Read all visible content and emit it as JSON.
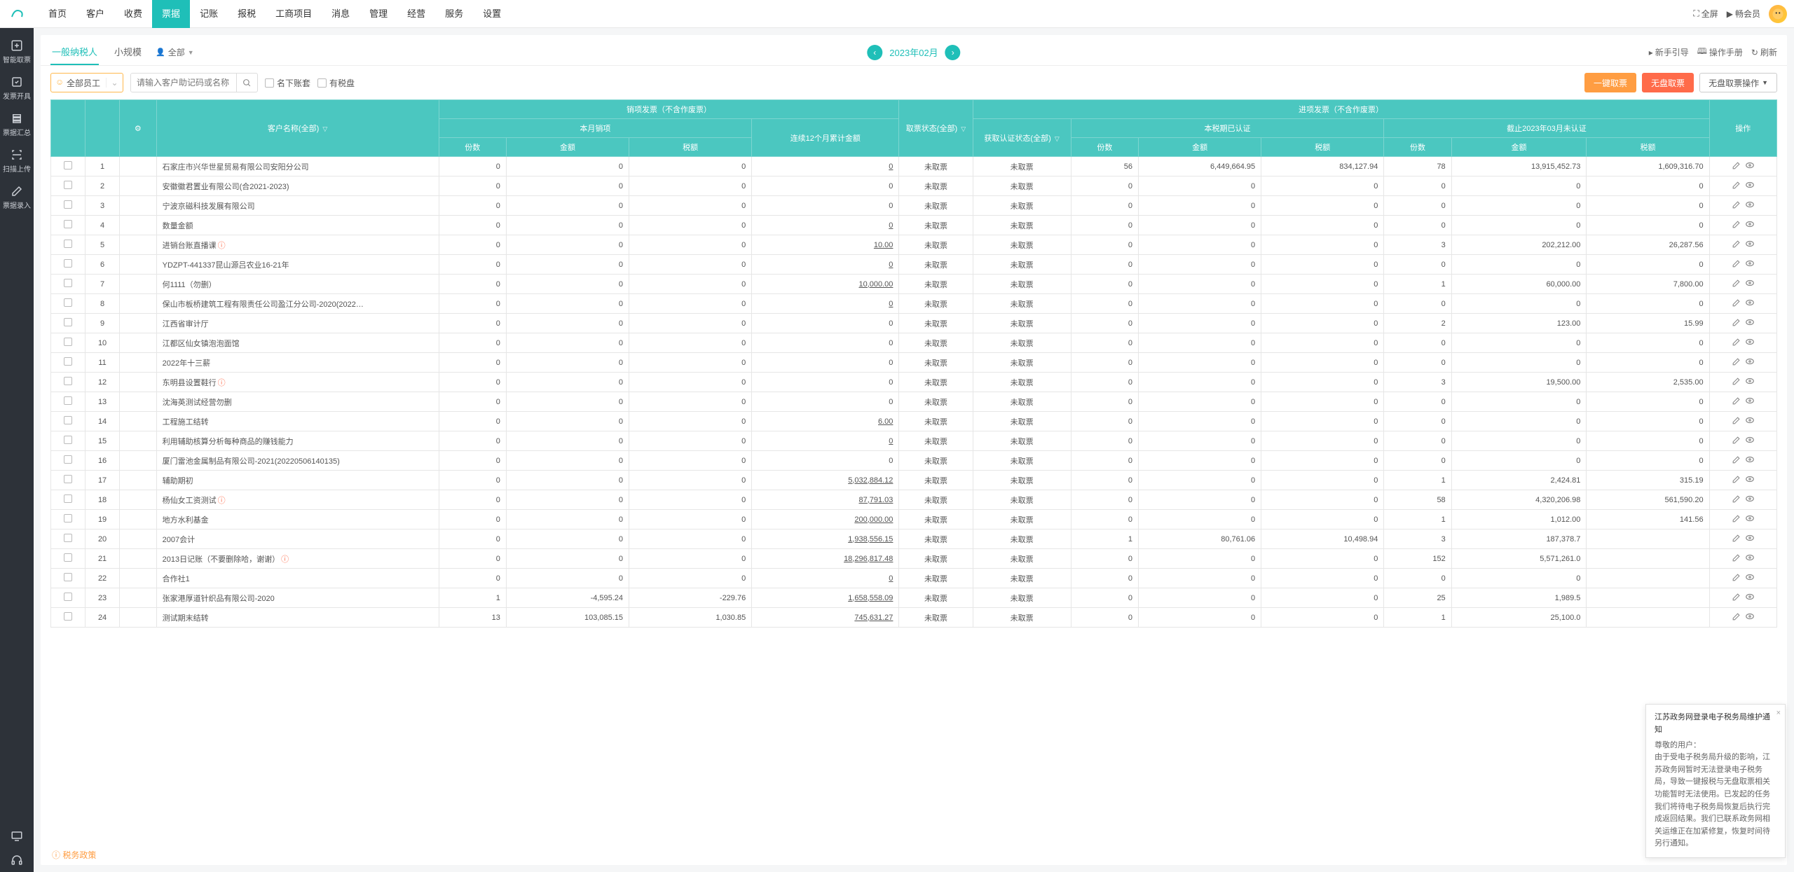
{
  "colors": {
    "accent": "#1fbfb8",
    "table_header": "#4bc7c0",
    "orange": "#ff9d42",
    "orange_red": "#ff6b4a",
    "sidebar_bg": "#2d3239",
    "page_bg": "#f5f6f7"
  },
  "topnav": {
    "menu": [
      "首页",
      "客户",
      "收费",
      "票据",
      "记账",
      "报税",
      "工商项目",
      "消息",
      "管理",
      "经营",
      "服务",
      "设置"
    ],
    "active_index": 3,
    "right": {
      "fullscreen": "全屏",
      "member": "畅会员"
    }
  },
  "sidebar": {
    "items": [
      {
        "label": "智能取票",
        "icon": "plus-box"
      },
      {
        "label": "发票开具",
        "icon": "edit-box"
      },
      {
        "label": "票据汇总",
        "icon": "stack"
      },
      {
        "label": "扫描上传",
        "icon": "scan"
      },
      {
        "label": "票据录入",
        "icon": "edit"
      }
    ],
    "bottom_items": [
      {
        "label": "",
        "icon": "monitor"
      },
      {
        "label": "",
        "icon": "headset"
      }
    ]
  },
  "tabs": {
    "items": [
      "一般纳税人",
      "小规模"
    ],
    "active_index": 0,
    "all_filter": "全部",
    "date": "2023年02月",
    "right_links": {
      "guide": "新手引导",
      "manual": "操作手册",
      "refresh": "刷新"
    }
  },
  "toolbar": {
    "employee_filter": "全部员工",
    "search_placeholder": "请输入客户助记码或名称",
    "cb_under_account": "名下账套",
    "cb_has_disk": "有税盘",
    "btn_onekey": "一键取票",
    "btn_nodisk": "无盘取票",
    "btn_nodisk_ops": "无盘取票操作"
  },
  "table": {
    "header": {
      "customer": "客户名称(全部)",
      "sales_group": "销项发票（不含作废票）",
      "sales_month": "本月销项",
      "sales_count": "份数",
      "sales_amount": "金额",
      "sales_tax": "税额",
      "sales_12m": "连续12个月累计金额",
      "fetch_status": "取票状态(全部)",
      "purchase_group": "进项发票（不含作废票）",
      "pur_certified": "本税期已认证",
      "pur_uncert": "截止2023年03月未认证",
      "cert_status": "获取认证状态(全部)",
      "count": "份数",
      "amount": "金额",
      "tax": "税额",
      "ops": "操作"
    },
    "status_values": {
      "not_fetched": "未取票"
    },
    "rows": [
      {
        "idx": 1,
        "name": "石家庄市兴华世星贸易有限公司安阳分公司",
        "s_cnt": "0",
        "s_amt": "0",
        "s_tax": "0",
        "s_12m": "0",
        "s_12m_u": true,
        "fetch": "未取票",
        "cert": "未取票",
        "c_cnt": "56",
        "c_amt": "6,449,664.95",
        "c_tax": "834,127.94",
        "u_cnt": "78",
        "u_amt": "13,915,452.73",
        "u_tax": "1,609,316.70"
      },
      {
        "idx": 2,
        "name": "安徽徽君置业有限公司(合2021-2023)",
        "s_cnt": "0",
        "s_amt": "0",
        "s_tax": "0",
        "s_12m": "0",
        "fetch": "未取票",
        "cert": "未取票",
        "c_cnt": "0",
        "c_amt": "0",
        "c_tax": "0",
        "u_cnt": "0",
        "u_amt": "0",
        "u_tax": "0"
      },
      {
        "idx": 3,
        "name": "宁波京磁科技发展有限公司",
        "s_cnt": "0",
        "s_amt": "0",
        "s_tax": "0",
        "s_12m": "0",
        "fetch": "未取票",
        "cert": "未取票",
        "c_cnt": "0",
        "c_amt": "0",
        "c_tax": "0",
        "u_cnt": "0",
        "u_amt": "0",
        "u_tax": "0"
      },
      {
        "idx": 4,
        "name": "数量金额",
        "s_cnt": "0",
        "s_amt": "0",
        "s_tax": "0",
        "s_12m": "0",
        "s_12m_u": true,
        "fetch": "未取票",
        "cert": "未取票",
        "c_cnt": "0",
        "c_amt": "0",
        "c_tax": "0",
        "u_cnt": "0",
        "u_amt": "0",
        "u_tax": "0"
      },
      {
        "idx": 5,
        "name": "进销台账直播课",
        "warn": true,
        "s_cnt": "0",
        "s_amt": "0",
        "s_tax": "0",
        "s_12m": "10.00",
        "s_12m_u": true,
        "fetch": "未取票",
        "cert": "未取票",
        "c_cnt": "0",
        "c_amt": "0",
        "c_tax": "0",
        "u_cnt": "3",
        "u_amt": "202,212.00",
        "u_tax": "26,287.56"
      },
      {
        "idx": 6,
        "name": "YDZPT-441337昆山源吕农业16-21年",
        "s_cnt": "0",
        "s_amt": "0",
        "s_tax": "0",
        "s_12m": "0",
        "s_12m_u": true,
        "fetch": "未取票",
        "cert": "未取票",
        "c_cnt": "0",
        "c_amt": "0",
        "c_tax": "0",
        "u_cnt": "0",
        "u_amt": "0",
        "u_tax": "0"
      },
      {
        "idx": 7,
        "name": "何1111（勿删）",
        "s_cnt": "0",
        "s_amt": "0",
        "s_tax": "0",
        "s_12m": "10,000.00",
        "s_12m_u": true,
        "fetch": "未取票",
        "cert": "未取票",
        "c_cnt": "0",
        "c_amt": "0",
        "c_tax": "0",
        "u_cnt": "1",
        "u_amt": "60,000.00",
        "u_tax": "7,800.00"
      },
      {
        "idx": 8,
        "name": "保山市板桥建筑工程有限责任公司盈江分公司-2020(2022…",
        "s_cnt": "0",
        "s_amt": "0",
        "s_tax": "0",
        "s_12m": "0",
        "s_12m_u": true,
        "fetch": "未取票",
        "cert": "未取票",
        "c_cnt": "0",
        "c_amt": "0",
        "c_tax": "0",
        "u_cnt": "0",
        "u_amt": "0",
        "u_tax": "0"
      },
      {
        "idx": 9,
        "name": "江西省审计厅",
        "s_cnt": "0",
        "s_amt": "0",
        "s_tax": "0",
        "s_12m": "0",
        "fetch": "未取票",
        "cert": "未取票",
        "c_cnt": "0",
        "c_amt": "0",
        "c_tax": "0",
        "u_cnt": "2",
        "u_amt": "123.00",
        "u_tax": "15.99"
      },
      {
        "idx": 10,
        "name": "江都区仙女镇泡泡面馆",
        "s_cnt": "0",
        "s_amt": "0",
        "s_tax": "0",
        "s_12m": "0",
        "fetch": "未取票",
        "cert": "未取票",
        "c_cnt": "0",
        "c_amt": "0",
        "c_tax": "0",
        "u_cnt": "0",
        "u_amt": "0",
        "u_tax": "0"
      },
      {
        "idx": 11,
        "name": "2022年十三薪",
        "s_cnt": "0",
        "s_amt": "0",
        "s_tax": "0",
        "s_12m": "0",
        "fetch": "未取票",
        "cert": "未取票",
        "c_cnt": "0",
        "c_amt": "0",
        "c_tax": "0",
        "u_cnt": "0",
        "u_amt": "0",
        "u_tax": "0"
      },
      {
        "idx": 12,
        "name": "东明县设置鞋行",
        "warn": true,
        "s_cnt": "0",
        "s_amt": "0",
        "s_tax": "0",
        "s_12m": "0",
        "fetch": "未取票",
        "cert": "未取票",
        "c_cnt": "0",
        "c_amt": "0",
        "c_tax": "0",
        "u_cnt": "3",
        "u_amt": "19,500.00",
        "u_tax": "2,535.00"
      },
      {
        "idx": 13,
        "name": "沈海英测试经营勿删",
        "s_cnt": "0",
        "s_amt": "0",
        "s_tax": "0",
        "s_12m": "0",
        "fetch": "未取票",
        "cert": "未取票",
        "c_cnt": "0",
        "c_amt": "0",
        "c_tax": "0",
        "u_cnt": "0",
        "u_amt": "0",
        "u_tax": "0"
      },
      {
        "idx": 14,
        "name": "工程施工结转",
        "s_cnt": "0",
        "s_amt": "0",
        "s_tax": "0",
        "s_12m": "6.00",
        "s_12m_u": true,
        "fetch": "未取票",
        "cert": "未取票",
        "c_cnt": "0",
        "c_amt": "0",
        "c_tax": "0",
        "u_cnt": "0",
        "u_amt": "0",
        "u_tax": "0"
      },
      {
        "idx": 15,
        "name": "利用辅助核算分析每种商品的赚钱能力",
        "s_cnt": "0",
        "s_amt": "0",
        "s_tax": "0",
        "s_12m": "0",
        "s_12m_u": true,
        "fetch": "未取票",
        "cert": "未取票",
        "c_cnt": "0",
        "c_amt": "0",
        "c_tax": "0",
        "u_cnt": "0",
        "u_amt": "0",
        "u_tax": "0"
      },
      {
        "idx": 16,
        "name": "厦门雷池金属制品有限公司-2021(20220506140135)",
        "s_cnt": "0",
        "s_amt": "0",
        "s_tax": "0",
        "s_12m": "0",
        "fetch": "未取票",
        "cert": "未取票",
        "c_cnt": "0",
        "c_amt": "0",
        "c_tax": "0",
        "u_cnt": "0",
        "u_amt": "0",
        "u_tax": "0"
      },
      {
        "idx": 17,
        "name": "辅助期初",
        "s_cnt": "0",
        "s_amt": "0",
        "s_tax": "0",
        "s_12m": "5,032,884.12",
        "s_12m_u": true,
        "fetch": "未取票",
        "cert": "未取票",
        "c_cnt": "0",
        "c_amt": "0",
        "c_tax": "0",
        "u_cnt": "1",
        "u_amt": "2,424.81",
        "u_tax": "315.19"
      },
      {
        "idx": 18,
        "name": "杨仙女工资测试",
        "warn": true,
        "s_cnt": "0",
        "s_amt": "0",
        "s_tax": "0",
        "s_12m": "87,791.03",
        "s_12m_u": true,
        "fetch": "未取票",
        "cert": "未取票",
        "c_cnt": "0",
        "c_amt": "0",
        "c_tax": "0",
        "u_cnt": "58",
        "u_amt": "4,320,206.98",
        "u_tax": "561,590.20"
      },
      {
        "idx": 19,
        "name": "地方水利基金",
        "s_cnt": "0",
        "s_amt": "0",
        "s_tax": "0",
        "s_12m": "200,000.00",
        "s_12m_u": true,
        "fetch": "未取票",
        "cert": "未取票",
        "c_cnt": "0",
        "c_amt": "0",
        "c_tax": "0",
        "u_cnt": "1",
        "u_amt": "1,012.00",
        "u_tax": "141.56"
      },
      {
        "idx": 20,
        "name": "2007会计",
        "s_cnt": "0",
        "s_amt": "0",
        "s_tax": "0",
        "s_12m": "1,938,556.15",
        "s_12m_u": true,
        "fetch": "未取票",
        "cert": "未取票",
        "c_cnt": "1",
        "c_amt": "80,761.06",
        "c_tax": "10,498.94",
        "u_cnt": "3",
        "u_amt": "187,378.7",
        "u_tax": ""
      },
      {
        "idx": 21,
        "name": "2013日记账（不要删除哈，谢谢）",
        "warn": true,
        "s_cnt": "0",
        "s_amt": "0",
        "s_tax": "0",
        "s_12m": "18,296,817.48",
        "s_12m_u": true,
        "fetch": "未取票",
        "cert": "未取票",
        "c_cnt": "0",
        "c_amt": "0",
        "c_tax": "0",
        "u_cnt": "152",
        "u_amt": "5,571,261.0",
        "u_tax": ""
      },
      {
        "idx": 22,
        "name": "合作社1",
        "s_cnt": "0",
        "s_amt": "0",
        "s_tax": "0",
        "s_12m": "0",
        "s_12m_u": true,
        "fetch": "未取票",
        "cert": "未取票",
        "c_cnt": "0",
        "c_amt": "0",
        "c_tax": "0",
        "u_cnt": "0",
        "u_amt": "0",
        "u_tax": ""
      },
      {
        "idx": 23,
        "name": "张家港厚道针织品有限公司-2020",
        "s_cnt": "1",
        "s_amt": "-4,595.24",
        "s_tax": "-229.76",
        "s_12m": "1,658,558.09",
        "s_12m_u": true,
        "fetch": "未取票",
        "cert": "未取票",
        "c_cnt": "0",
        "c_amt": "0",
        "c_tax": "0",
        "u_cnt": "25",
        "u_amt": "1,989.5",
        "u_tax": ""
      },
      {
        "idx": 24,
        "name": "测试期末结转",
        "s_cnt": "13",
        "s_amt": "103,085.15",
        "s_tax": "1,030.85",
        "s_12m": "745,631.27",
        "s_12m_u": true,
        "fetch": "未取票",
        "cert": "未取票",
        "c_cnt": "0",
        "c_amt": "0",
        "c_tax": "0",
        "u_cnt": "1",
        "u_amt": "25,100.0",
        "u_tax": ""
      }
    ]
  },
  "footer": {
    "policy": "税务政策"
  },
  "toast": {
    "title": "江苏政务网登录电子税务局维护通知",
    "body": "尊敬的用户：\n由于受电子税务局升级的影响，江苏政务网暂时无法登录电子税务局，导致一键报税与无盘取票相关功能暂时无法使用。已发起的任务我们将待电子税务局恢复后执行完成返回结果。我们已联系政务网相关运维正在加紧修复，恢复时间待另行通知。"
  }
}
